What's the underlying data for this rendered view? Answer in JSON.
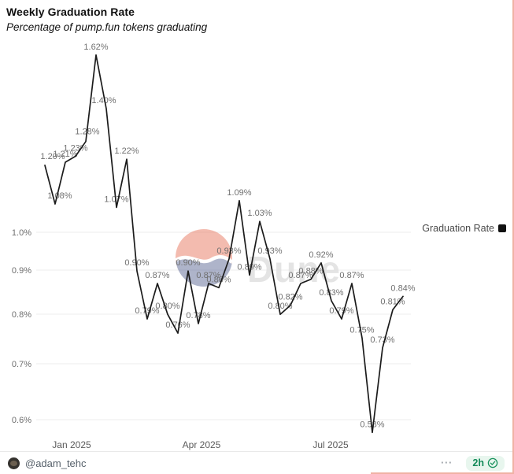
{
  "header": {
    "title": "Weekly Graduation Rate",
    "subtitle": "Percentage of pump.fun tokens graduating"
  },
  "legend": {
    "label": "Graduation Rate",
    "marker_color": "#111111"
  },
  "watermark": {
    "text": "Dune"
  },
  "footer": {
    "handle": "@adam_tehc",
    "menu": "⋯",
    "badge_text": "2h"
  },
  "chart_data": {
    "type": "line",
    "title": "Weekly Graduation Rate",
    "subtitle": "Percentage of pump.fun tokens graduating",
    "series": [
      {
        "name": "Graduation Rate",
        "color": "#1b1b1b"
      }
    ],
    "unit": "%",
    "y_scale": "log",
    "ylim": [
      0.58,
      1.62
    ],
    "grid": true,
    "legend_position": "right",
    "y_ticks": [
      "1.0%",
      "0.9%",
      "0.8%",
      "0.7%",
      "0.6%"
    ],
    "y_tick_values": [
      1.0,
      0.9,
      0.8,
      0.7,
      0.6
    ],
    "x_ticks": [
      "Jan 2025",
      "Apr 2025",
      "Jul 2025"
    ],
    "x_description": "weekly points, late Dec 2024 through Aug 2025",
    "values": [
      1.2,
      1.08,
      1.21,
      1.23,
      1.28,
      1.62,
      1.4,
      1.07,
      1.22,
      0.9,
      0.79,
      0.87,
      0.8,
      0.76,
      0.9,
      0.78,
      0.87,
      0.86,
      0.93,
      1.09,
      0.89,
      1.03,
      0.93,
      0.8,
      0.82,
      0.87,
      0.88,
      0.92,
      0.83,
      0.79,
      0.87,
      0.75,
      0.58,
      0.73,
      0.81,
      0.84
    ],
    "point_labels": [
      "1.20%",
      "1.08%",
      "1.21%",
      "1.23%",
      "1.28%",
      "1.62%",
      "1.40%",
      "1.07%",
      "1.22%",
      "0.90%",
      "0.79%",
      "0.87%",
      "0.80%",
      "0.76%",
      "0.90%",
      "0.78%",
      "0.87%",
      "0.86%",
      "0.93%",
      "1.09%",
      "0.89%",
      "1.03%",
      "0.93%",
      "0.80%",
      "0.82%",
      "0.87%",
      "0.88%",
      "0.92%",
      "0.83%",
      "0.79%",
      "0.87%",
      "0.75%",
      "0.58%",
      "0.73%",
      "0.81%",
      "0.84%"
    ]
  }
}
